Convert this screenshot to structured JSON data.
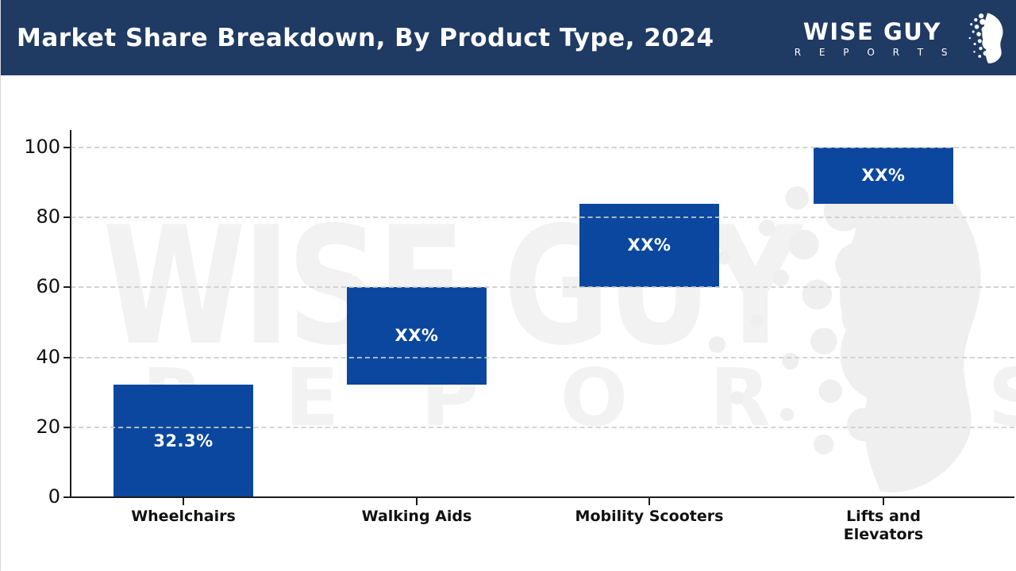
{
  "header": {
    "title": "Market Share Breakdown, By Product Type, 2024",
    "bg_color": "#1f3a63",
    "logo": {
      "line1": "WISE GUY",
      "line2": "R E P O R T S"
    }
  },
  "watermark": {
    "line1": "WISE GUY",
    "line2": "R E P O R T S"
  },
  "icons": {
    "logo_face": "dot-face",
    "watermark_face": "dot-face"
  },
  "colors": {
    "bar": "#0b479e",
    "header": "#1f3a63",
    "grid": "#cbcbcb",
    "axis": "#1c1c1c",
    "bar_label": "#ffffff"
  },
  "chart_data": {
    "type": "bar",
    "subtype": "waterfall-floating-bars",
    "title": "Market Share Breakdown, By Product Type, 2024",
    "categories": [
      "Wheelchairs",
      "Walking Aids",
      "Mobility Scooters",
      "Lifts and Elevators"
    ],
    "tick_label_lines": [
      [
        "Wheelchairs"
      ],
      [
        "Walking Aids"
      ],
      [
        "Mobility Scooters"
      ],
      [
        "Lifts and",
        "Elevators"
      ]
    ],
    "bars": [
      {
        "category": "Wheelchairs",
        "start": 0,
        "end": 32.3,
        "label": "32.3%"
      },
      {
        "category": "Walking Aids",
        "start": 32.3,
        "end": 60,
        "label": "XX%"
      },
      {
        "category": "Mobility Scooters",
        "start": 60,
        "end": 84,
        "label": "XX%"
      },
      {
        "category": "Lifts and Elevators",
        "start": 84,
        "end": 100,
        "label": "XX%"
      }
    ],
    "xlabel": "",
    "ylabel": "",
    "ylim": [
      0,
      100
    ],
    "yticks": [
      0,
      20,
      40,
      60,
      80,
      100
    ],
    "grid": "horizontal-dashed-over-bars",
    "legend": "none"
  }
}
